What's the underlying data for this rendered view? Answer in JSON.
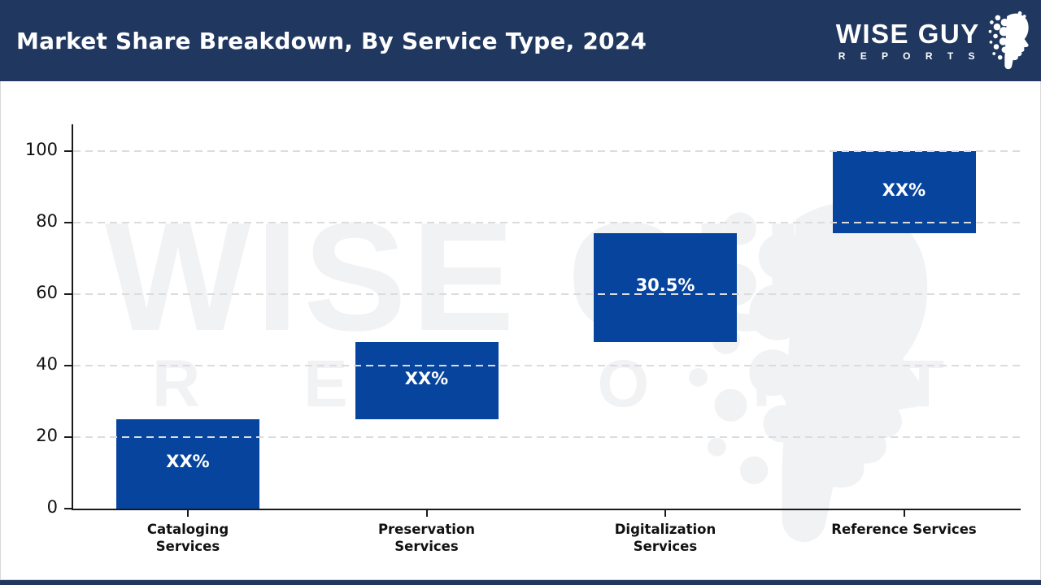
{
  "header": {
    "title": "Market Share Breakdown, By Service Type, 2024",
    "brand_name": "WISE GUY",
    "brand_sub": "R E P O R T S"
  },
  "watermark": {
    "text_main": "WISE GU",
    "text_sub": "R E P O R T S"
  },
  "colors": {
    "header_bg": "#20375f",
    "footer_bg": "#20375f",
    "bar": "#07449e",
    "gridline": "#dcdcdc",
    "axis": "#1a1a1a",
    "watermark": "#f1f2f4",
    "bar_label": "#ffffff"
  },
  "chart_data": {
    "type": "bar",
    "subtype": "floating-waterfall",
    "title": "Market Share Breakdown, By Service Type, 2024",
    "xlabel": "",
    "ylabel": "",
    "ylim": [
      0,
      105
    ],
    "yticks": [
      0,
      20,
      40,
      60,
      80,
      100
    ],
    "grid": "horizontal-dashed",
    "legend": "none",
    "categories": [
      "Cataloging Services",
      "Preservation Services",
      "Digitalization Services",
      "Reference Services"
    ],
    "category_lines": [
      [
        "Cataloging",
        "Services"
      ],
      [
        "Preservation",
        "Services"
      ],
      [
        "Digitalization",
        "Services"
      ],
      [
        "Reference Services"
      ]
    ],
    "bars": [
      {
        "category": "Cataloging Services",
        "label": "XX%",
        "start": 0,
        "end": 25
      },
      {
        "category": "Preservation Services",
        "label": "XX%",
        "start": 25,
        "end": 46.5
      },
      {
        "category": "Digitalization Services",
        "label": "30.5%",
        "start": 46.5,
        "end": 77
      },
      {
        "category": "Reference Services",
        "label": "XX%",
        "start": 77,
        "end": 100
      }
    ]
  }
}
